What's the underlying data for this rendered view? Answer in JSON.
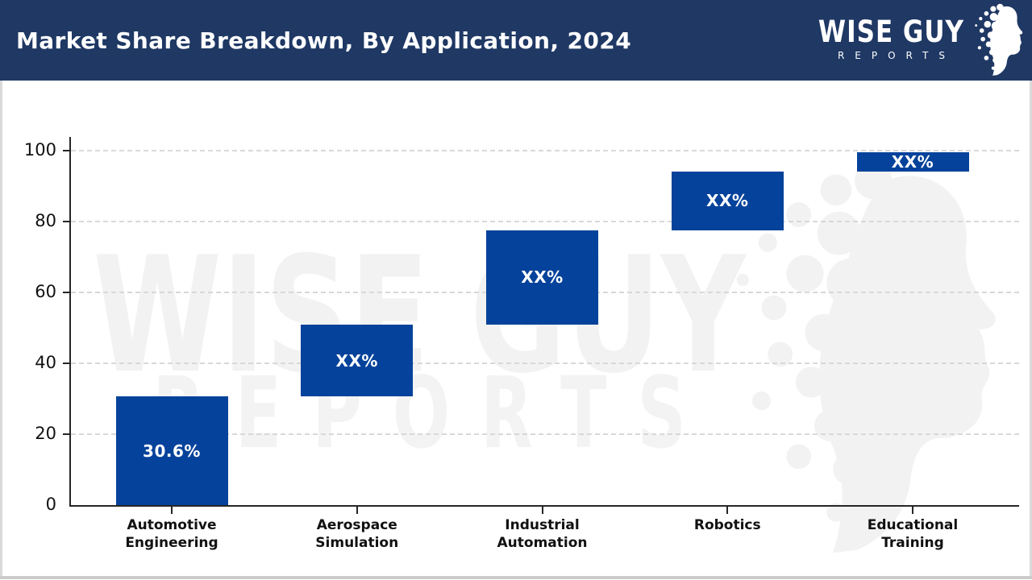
{
  "header": {
    "title": "Market Share Breakdown, By Application, 2024",
    "logo": {
      "line1": "WISE GUY",
      "line2": "REPORTS"
    }
  },
  "watermark": {
    "line1": "WISE GUY",
    "line2": "REPORTS"
  },
  "theme": {
    "header_bg": "#1f3864",
    "bar_color": "#05429b",
    "grid_color": "#d8d8d8",
    "axis_color": "#262626",
    "watermark_color": "#f2f2f2",
    "title_color": "#ffffff"
  },
  "chart_data": {
    "type": "bar",
    "subtype": "floating-waterfall",
    "title": "Market Share Breakdown, By Application, 2024",
    "categories": [
      "Automotive Engineering",
      "Aerospace Simulation",
      "Industrial Automation",
      "Robotics",
      "Educational Training"
    ],
    "bars": [
      {
        "category": "Automotive\nEngineering",
        "start": 0,
        "end": 30.6,
        "label": "30.6%"
      },
      {
        "category": "Aerospace\nSimulation",
        "start": 30.6,
        "end": 51.0,
        "label": "XX%"
      },
      {
        "category": "Industrial\nAutomation",
        "start": 51.0,
        "end": 77.6,
        "label": "XX%"
      },
      {
        "category": "Robotics",
        "start": 77.6,
        "end": 94.0,
        "label": "XX%"
      },
      {
        "category": "Educational\nTraining",
        "start": 94.0,
        "end": 99.6,
        "label": "XX%"
      }
    ],
    "yticks": [
      0,
      20,
      40,
      60,
      80,
      100
    ],
    "ylim": [
      0,
      104
    ],
    "xlabel": "",
    "ylabel": "",
    "legend": "none",
    "grid": "horizontal-dashed"
  }
}
